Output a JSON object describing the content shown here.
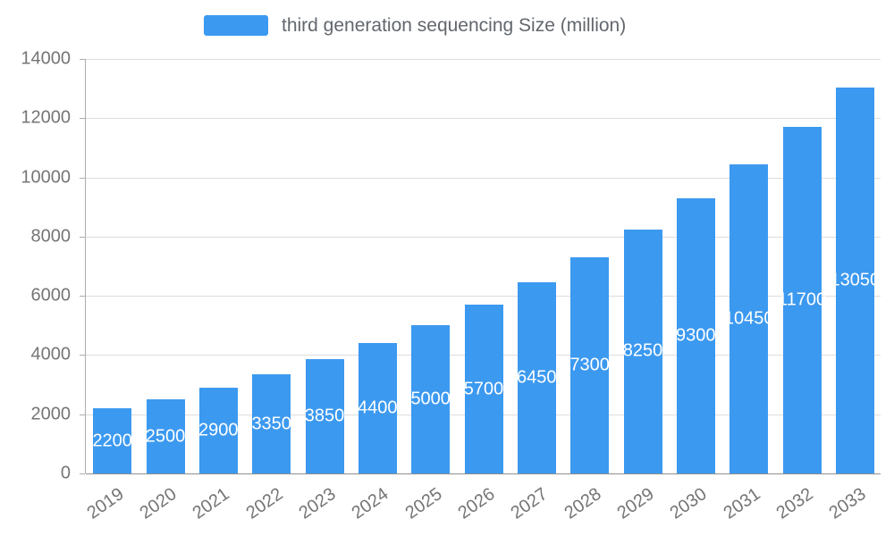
{
  "chart_data": {
    "type": "bar",
    "title": "",
    "legend_position": "top",
    "grid": true,
    "categories": [
      "2019",
      "2020",
      "2021",
      "2022",
      "2023",
      "2024",
      "2025",
      "2026",
      "2027",
      "2028",
      "2029",
      "2030",
      "2031",
      "2032",
      "2033"
    ],
    "series": [
      {
        "name": "third generation sequencing Size (million)",
        "values": [
          2200,
          2500,
          2900,
          3350,
          3850,
          4400,
          5000,
          5700,
          6450,
          7300,
          8250,
          9300,
          10450,
          11700,
          13050
        ]
      }
    ],
    "xlabel": "",
    "ylabel": "",
    "ylim": [
      0,
      14000
    ],
    "ytick_step": 2000,
    "y_tick_labels": [
      "0",
      "2000",
      "4000",
      "6000",
      "8000",
      "10000",
      "12000",
      "14000"
    ],
    "bar_color": "#3c99f0",
    "value_label_color": "#ffffff",
    "axis_text_color": "#757575",
    "grid_color": "#dddddd"
  }
}
